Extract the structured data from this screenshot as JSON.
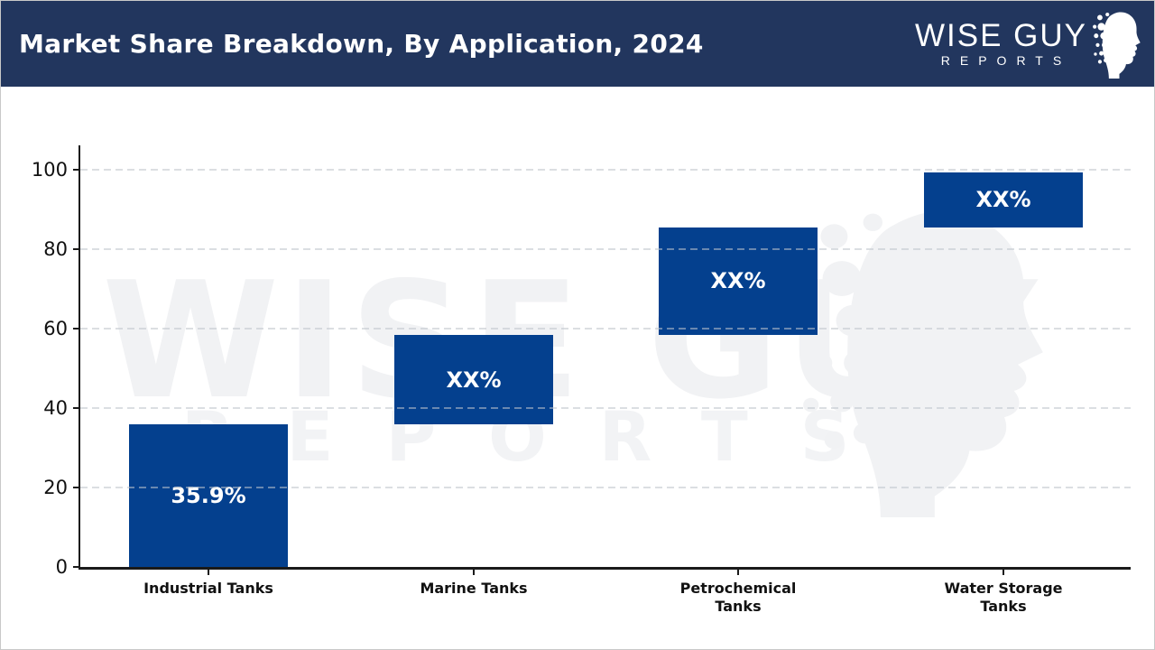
{
  "header": {
    "title": "Market Share Breakdown, By Application, 2024",
    "logo": {
      "line1": "WISE GUY",
      "line2": "REPORTS"
    }
  },
  "watermark": {
    "line1": "WISE GUY",
    "line2": "REPORTS"
  },
  "chart_data": {
    "type": "bar",
    "subtype": "waterfall",
    "title": "Market Share Breakdown, By Application, 2024",
    "categories": [
      "Industrial Tanks",
      "Marine Tanks",
      "Petrochemical\nTanks",
      "Water Storage\nTanks"
    ],
    "segments": [
      {
        "category": "Industrial Tanks",
        "label": "35.9%",
        "start": 0,
        "end": 35.9
      },
      {
        "category": "Marine Tanks",
        "label": "XX%",
        "start": 35.9,
        "end": 58.4
      },
      {
        "category": "Petrochemical Tanks",
        "label": "XX%",
        "start": 58.4,
        "end": 85.5
      },
      {
        "category": "Water Storage Tanks",
        "label": "XX%",
        "start": 85.5,
        "end": 99.3
      }
    ],
    "y_ticks": [
      0,
      20,
      40,
      60,
      80,
      100
    ],
    "ylim": [
      0,
      105.5
    ],
    "xlabel": "",
    "ylabel": "",
    "grid": "horizontal-dashed",
    "legend": "none"
  },
  "colors": {
    "header_bg": "#22365e",
    "bar": "#04408e",
    "bar_label": "#ffffff",
    "axis": "#1a1a1a",
    "grid": "#dddddd",
    "watermark": "#f1f2f4",
    "canvas_border": "#c9c9c9",
    "background": "#ffffff"
  }
}
